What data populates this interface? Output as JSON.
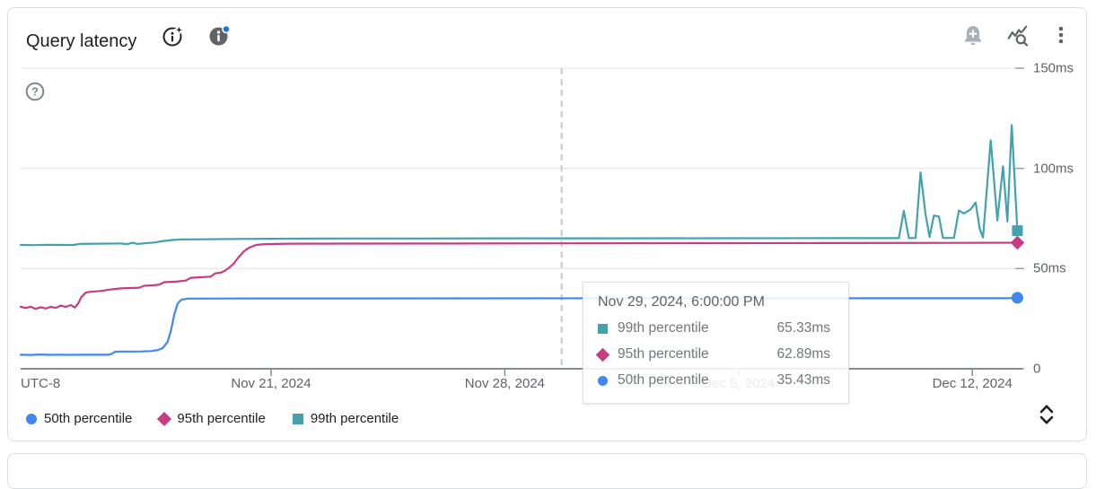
{
  "card": {
    "title": "Query latency",
    "header_icons": {
      "gemini_info": "info-with-sparkle",
      "info_badge": "info-circle-with-notification-dot",
      "add_alert": "bell-plus (disabled)",
      "explore": "view-in-metrics-explorer",
      "more": "three-dot-menu"
    },
    "help_icon": "question-mark-circle",
    "expand_control": "unfold-more"
  },
  "chart_data": {
    "type": "line",
    "title": "Query latency",
    "grid": true,
    "legend_position": "bottom",
    "x_axis": {
      "timezone_label": "UTC-8",
      "domain_days": 30,
      "ticks": [
        {
          "day": 7.5,
          "label": "Nov 21, 2024"
        },
        {
          "day": 14.5,
          "label": "Nov 28, 2024"
        },
        {
          "day": 21.5,
          "label": "Dec 5, 2024"
        },
        {
          "day": 28.5,
          "label": "Dec 12, 2024"
        }
      ]
    },
    "y_axis": {
      "min": 0,
      "max": 150,
      "unit": "ms",
      "ticks": [
        {
          "value": 0,
          "label": "0"
        },
        {
          "value": 50,
          "label": "50ms"
        },
        {
          "value": 100,
          "label": "100ms"
        },
        {
          "value": 150,
          "label": "150ms"
        }
      ]
    },
    "crosshair_day": 16.2,
    "series": [
      {
        "name": "50th percentile",
        "color": "#4285F4",
        "marker": "circle",
        "value_at_crosshair_ms": 35.43,
        "points": [
          [
            0,
            7.0
          ],
          [
            0.3,
            6.9
          ],
          [
            0.6,
            7.1
          ],
          [
            0.9,
            6.95
          ],
          [
            1.2,
            7.05
          ],
          [
            1.5,
            6.95
          ],
          [
            1.8,
            7.05
          ],
          [
            2.1,
            7.0
          ],
          [
            2.4,
            7.0
          ],
          [
            2.62,
            7.0
          ],
          [
            2.72,
            7.4
          ],
          [
            2.82,
            8.4
          ],
          [
            2.95,
            8.6
          ],
          [
            3.3,
            8.6
          ],
          [
            3.6,
            8.65
          ],
          [
            3.9,
            8.8
          ],
          [
            4.1,
            9.3
          ],
          [
            4.25,
            10.2
          ],
          [
            4.4,
            13.5
          ],
          [
            4.5,
            19
          ],
          [
            4.6,
            27
          ],
          [
            4.7,
            32.5
          ],
          [
            4.82,
            34.5
          ],
          [
            5.0,
            35.0
          ],
          [
            7,
            35.1
          ],
          [
            10,
            35.1
          ],
          [
            14,
            35.15
          ],
          [
            18,
            35.2
          ],
          [
            22,
            35.2
          ],
          [
            26,
            35.2
          ],
          [
            29.3,
            35.2
          ],
          [
            29.6,
            35.25
          ],
          [
            29.85,
            35.43
          ]
        ]
      },
      {
        "name": "95th percentile",
        "color": "#C63D82",
        "marker": "diamond",
        "value_at_crosshair_ms": 62.89,
        "points": [
          [
            0,
            31.0
          ],
          [
            0.15,
            30.3
          ],
          [
            0.3,
            31.0
          ],
          [
            0.45,
            29.9
          ],
          [
            0.6,
            30.7
          ],
          [
            0.75,
            30.1
          ],
          [
            0.9,
            30.9
          ],
          [
            1.05,
            30.4
          ],
          [
            1.2,
            31.5
          ],
          [
            1.35,
            30.9
          ],
          [
            1.5,
            31.8
          ],
          [
            1.62,
            30.6
          ],
          [
            1.72,
            32.5
          ],
          [
            1.82,
            35.8
          ],
          [
            1.95,
            38.0
          ],
          [
            2.1,
            38.4
          ],
          [
            2.4,
            38.8
          ],
          [
            2.7,
            39.6
          ],
          [
            3.0,
            40.1
          ],
          [
            3.3,
            40.3
          ],
          [
            3.55,
            40.5
          ],
          [
            3.7,
            41.4
          ],
          [
            4.0,
            41.7
          ],
          [
            4.15,
            42.0
          ],
          [
            4.3,
            43.2
          ],
          [
            4.65,
            43.5
          ],
          [
            4.95,
            44.0
          ],
          [
            5.1,
            45.4
          ],
          [
            5.45,
            45.7
          ],
          [
            5.7,
            46.0
          ],
          [
            5.82,
            47.6
          ],
          [
            6.0,
            48.0
          ],
          [
            6.12,
            49.0
          ],
          [
            6.25,
            50.5
          ],
          [
            6.38,
            52.5
          ],
          [
            6.52,
            55.5
          ],
          [
            6.68,
            58.5
          ],
          [
            6.85,
            60.5
          ],
          [
            7.05,
            61.8
          ],
          [
            7.3,
            62.2
          ],
          [
            8,
            62.4
          ],
          [
            12,
            62.5
          ],
          [
            16,
            62.6
          ],
          [
            20,
            62.7
          ],
          [
            24,
            62.75
          ],
          [
            28,
            62.8
          ],
          [
            29.85,
            62.89
          ]
        ]
      },
      {
        "name": "99th percentile",
        "color": "#44A1AE",
        "marker": "square",
        "value_at_crosshair_ms": 65.33,
        "points": [
          [
            0,
            61.8
          ],
          [
            0.4,
            61.7
          ],
          [
            0.8,
            61.9
          ],
          [
            1.2,
            61.8
          ],
          [
            1.6,
            61.8
          ],
          [
            1.75,
            62.3
          ],
          [
            2.2,
            62.4
          ],
          [
            2.6,
            62.45
          ],
          [
            3.0,
            62.5
          ],
          [
            3.2,
            62.2
          ],
          [
            3.35,
            62.9
          ],
          [
            3.5,
            62.3
          ],
          [
            3.7,
            62.6
          ],
          [
            4.0,
            63.0
          ],
          [
            4.2,
            63.6
          ],
          [
            4.5,
            64.2
          ],
          [
            4.8,
            64.5
          ],
          [
            5.5,
            64.6
          ],
          [
            6.5,
            64.8
          ],
          [
            7.5,
            64.9
          ],
          [
            9,
            65.0
          ],
          [
            12,
            65.0
          ],
          [
            15,
            65.1
          ],
          [
            18,
            65.1
          ],
          [
            21,
            65.15
          ],
          [
            24,
            65.2
          ],
          [
            26.3,
            65.2
          ],
          [
            26.45,
            78.8
          ],
          [
            26.6,
            65.2
          ],
          [
            26.8,
            65.3
          ],
          [
            26.95,
            98.0
          ],
          [
            27.1,
            77.0
          ],
          [
            27.22,
            65.8
          ],
          [
            27.35,
            76.5
          ],
          [
            27.5,
            76.0
          ],
          [
            27.62,
            65.3
          ],
          [
            27.95,
            65.3
          ],
          [
            28.1,
            79.0
          ],
          [
            28.25,
            77.5
          ],
          [
            28.45,
            79.5
          ],
          [
            28.6,
            83.0
          ],
          [
            28.72,
            70.0
          ],
          [
            28.82,
            65.5
          ],
          [
            29.05,
            114.0
          ],
          [
            29.25,
            74.0
          ],
          [
            29.42,
            101.0
          ],
          [
            29.55,
            73.5
          ],
          [
            29.68,
            121.6
          ],
          [
            29.85,
            68.9
          ]
        ]
      }
    ]
  },
  "tooltip": {
    "timestamp": "Nov 29, 2024, 6:00:00 PM",
    "rows": [
      {
        "name": "99th percentile",
        "value": "65.33ms",
        "marker": "square",
        "color": "#44A1AE"
      },
      {
        "name": "95th percentile",
        "value": "62.89ms",
        "marker": "diamond",
        "color": "#C63D82"
      },
      {
        "name": "50th percentile",
        "value": "35.43ms",
        "marker": "circle",
        "color": "#4285F4"
      }
    ]
  },
  "legend": [
    {
      "name": "50th percentile",
      "marker": "circle",
      "color": "#4285F4"
    },
    {
      "name": "95th percentile",
      "marker": "diamond",
      "color": "#C63D82"
    },
    {
      "name": "99th percentile",
      "marker": "square",
      "color": "#44A1AE"
    }
  ],
  "colors": {
    "p50": "#4285F4",
    "p95": "#C63D82",
    "p99": "#44A1AE",
    "axis_line": "#858c93",
    "grid_line": "#e8eaec",
    "crosshair": "#c6c9c7",
    "label_text": "#5f6368",
    "badge_blue": "#1a73e8"
  }
}
